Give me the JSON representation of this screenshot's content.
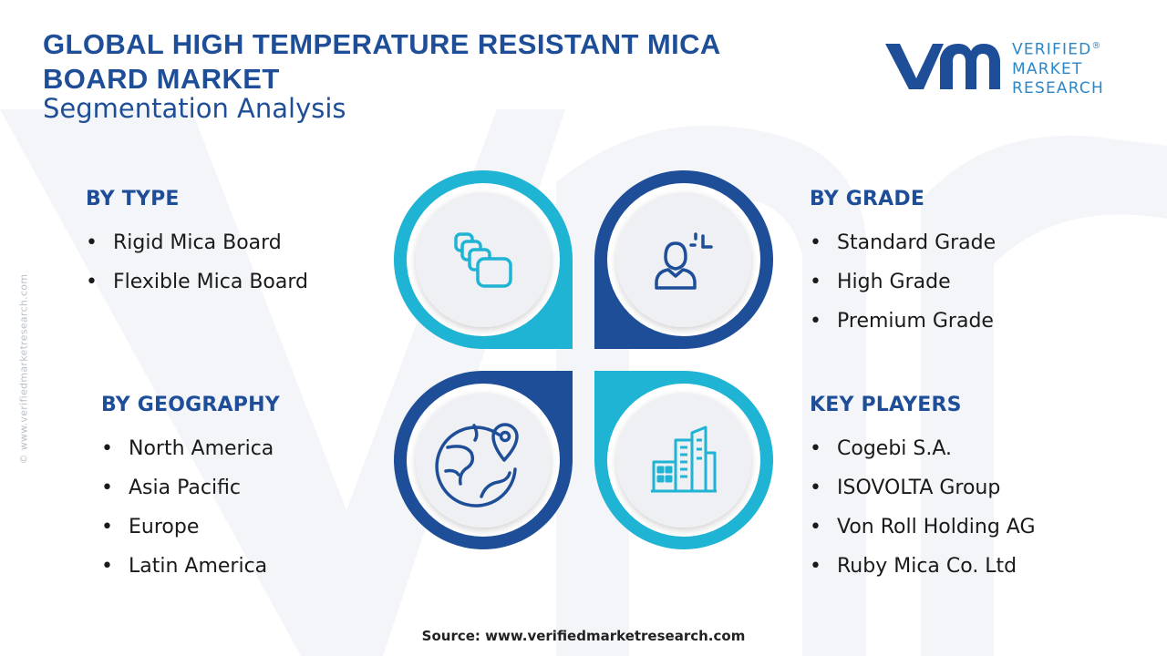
{
  "header": {
    "title_line1": "GLOBAL HIGH TEMPERATURE RESISTANT MICA",
    "title_line2": "BOARD MARKET",
    "subtitle": "Segmentation Analysis"
  },
  "logo": {
    "line1": "VERIFIED",
    "line2": "MARKET",
    "line3": "RESEARCH",
    "registered": "®"
  },
  "side_credit": "© www.verifiedmarketresearch.com",
  "segments": {
    "type": {
      "title": "BY TYPE",
      "items": [
        "Rigid Mica Board",
        "Flexible Mica Board"
      ],
      "icon": "layers-icon"
    },
    "grade": {
      "title": "BY GRADE",
      "items": [
        "Standard Grade",
        "High Grade",
        "Premium Grade"
      ],
      "icon": "user-grade-icon"
    },
    "geography": {
      "title": "BY GEOGRAPHY",
      "items": [
        "North America",
        "Asia Pacific",
        "Europe",
        "Latin America"
      ],
      "icon": "globe-pin-icon"
    },
    "players": {
      "title": "KEY PLAYERS",
      "items": [
        "Cogebi S.A.",
        "ISOVOLTA Group",
        "Von Roll Holding AG",
        "Ruby Mica Co. Ltd"
      ],
      "icon": "buildings-icon"
    }
  },
  "bullet": "•",
  "source": "Source: www.verifiedmarketresearch.com",
  "colors": {
    "dark_blue": "#1f4e99",
    "cyan": "#1fb3d4",
    "logo_blue": "#2b87c8",
    "circle_fill": "#eef0f3"
  }
}
